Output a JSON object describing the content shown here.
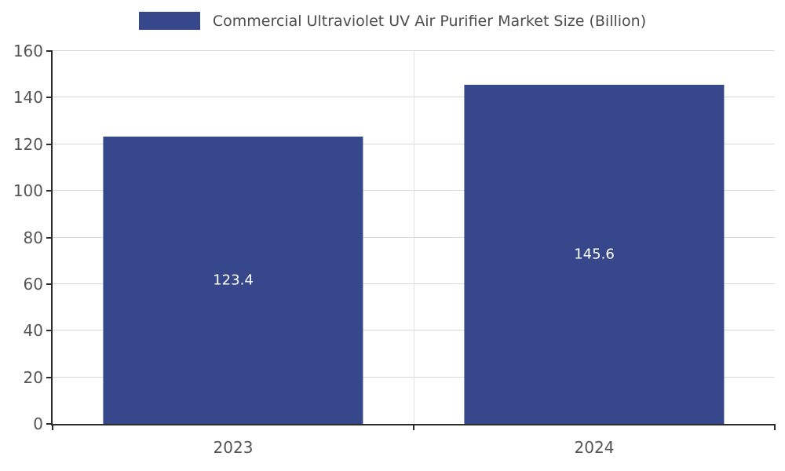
{
  "chart_data": {
    "type": "bar",
    "series_name": "Commercial Ultraviolet UV Air Purifier Market Size (Billion)",
    "categories": [
      "2023",
      "2024"
    ],
    "values": [
      123.4,
      145.6
    ],
    "data_labels": [
      "123.4",
      "145.6"
    ],
    "title": "",
    "xlabel": "",
    "ylabel": "",
    "ylim": [
      0,
      160
    ],
    "ytick_step": 20,
    "yticks": [
      0,
      20,
      40,
      60,
      80,
      100,
      120,
      140,
      160
    ],
    "grid": true,
    "legend_position": "top-center",
    "bar_color": "#36478B",
    "data_label_color": "#ffffff"
  }
}
